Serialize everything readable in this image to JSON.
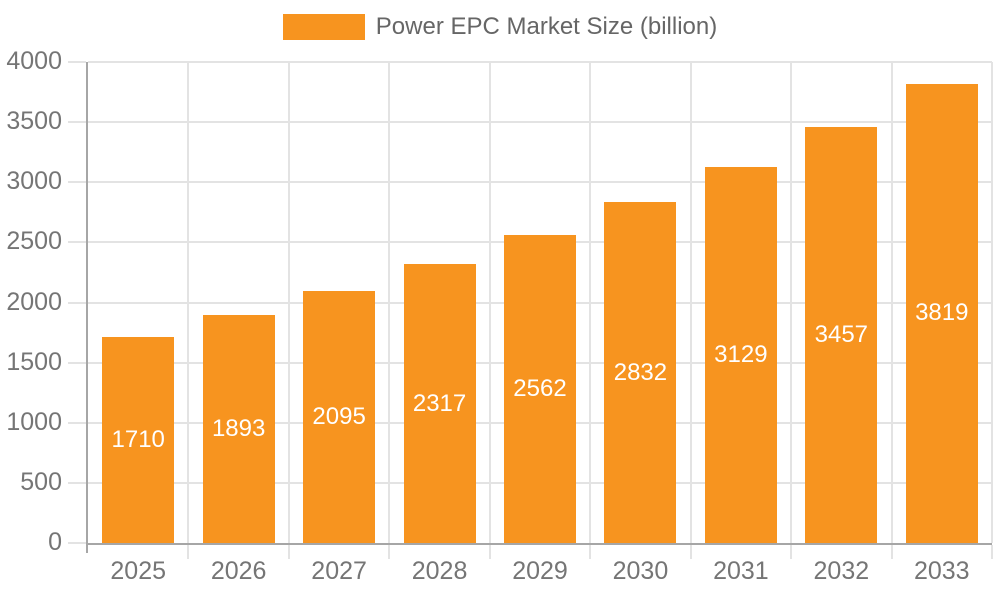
{
  "chart_data": {
    "type": "bar",
    "title": "",
    "legend_label": "Power EPC Market Size (billion)",
    "legend_position": "top",
    "categories": [
      "2025",
      "2026",
      "2027",
      "2028",
      "2029",
      "2030",
      "2031",
      "2032",
      "2033"
    ],
    "values": [
      1710,
      1893,
      2095,
      2317,
      2562,
      2832,
      3129,
      3457,
      3819
    ],
    "value_labels": [
      "1710",
      "1893",
      "2095",
      "2317",
      "2562",
      "2832",
      "3129",
      "3457",
      "3819"
    ],
    "xlabel": "",
    "ylabel": "",
    "ylim": [
      0,
      4000
    ],
    "ytick_step": 500,
    "yticks": [
      0,
      500,
      1000,
      1500,
      2000,
      2500,
      3000,
      3500,
      4000
    ],
    "grid": true,
    "colors": {
      "bar": "#F7941F",
      "value_label": "#FFFFFF",
      "grid": "#E3E3E3",
      "axis": "#A6A6A6",
      "tick_label": "#757575",
      "legend_text": "#666666",
      "background": "#FFFFFF"
    }
  }
}
